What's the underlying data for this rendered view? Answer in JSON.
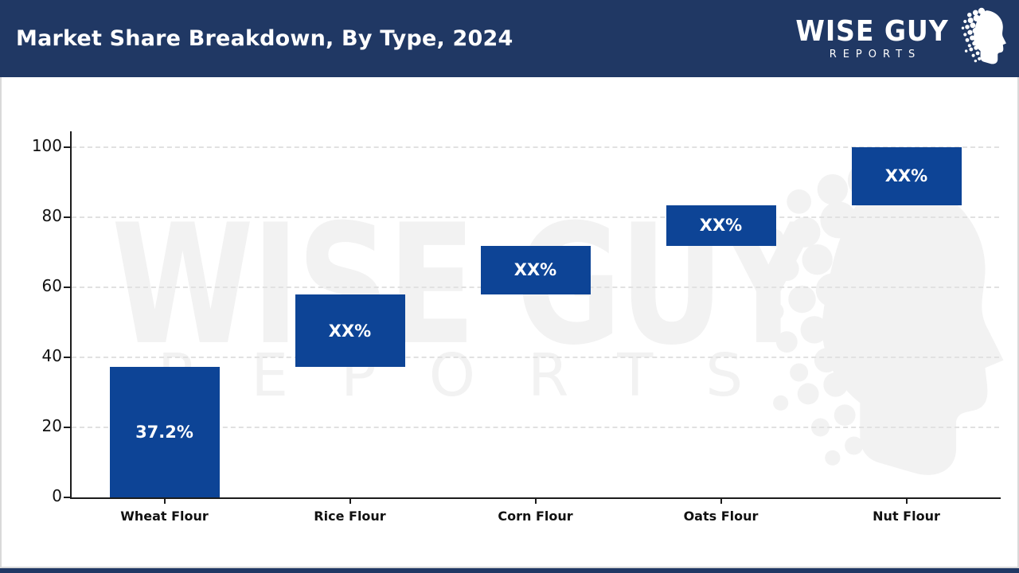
{
  "header": {
    "title": "Market Share Breakdown, By Type, 2024",
    "brand": {
      "line1": "WISE GUY",
      "line2": "REPORTS",
      "icon": "face-dots-icon"
    }
  },
  "watermark": {
    "line1": "WISE GUY",
    "line2": "REPORTS",
    "icon": "face-dots-icon"
  },
  "colors": {
    "header_bg": "#203864",
    "footer_bg": "#203864",
    "bar": "#0d4496",
    "bar_label": "#ffffff",
    "grid": "#e1e1e1",
    "axis": "#1c1c1c",
    "watermark": "#f2f2f2",
    "frame_border": "#d9d9d9"
  },
  "chart_data": {
    "type": "bar",
    "variant": "waterfall",
    "title": "Market Share Breakdown, By Type, 2024",
    "categories": [
      "Wheat Flour",
      "Rice Flour",
      "Corn Flour",
      "Oats Flour",
      "Nut Flour"
    ],
    "segments": [
      {
        "category": "Wheat Flour",
        "start": 0,
        "end": 37.2,
        "value": 37.2,
        "label": "37.2%"
      },
      {
        "category": "Rice Flour",
        "start": 37.2,
        "end": 58.0,
        "value": 20.8,
        "label": "XX%"
      },
      {
        "category": "Corn Flour",
        "start": 58.0,
        "end": 71.8,
        "value": 13.8,
        "label": "XX%"
      },
      {
        "category": "Oats Flour",
        "start": 71.8,
        "end": 83.5,
        "value": 11.7,
        "label": "XX%"
      },
      {
        "category": "Nut Flour",
        "start": 83.5,
        "end": 100,
        "value": 16.5,
        "label": "XX%"
      }
    ],
    "xlabel": "",
    "ylabel": "",
    "ylim": [
      0,
      100
    ],
    "yticks": [
      0,
      20,
      40,
      60,
      80,
      100
    ],
    "grid": "horizontal-dashed",
    "legend": null,
    "bar_color": "#0d4496"
  }
}
